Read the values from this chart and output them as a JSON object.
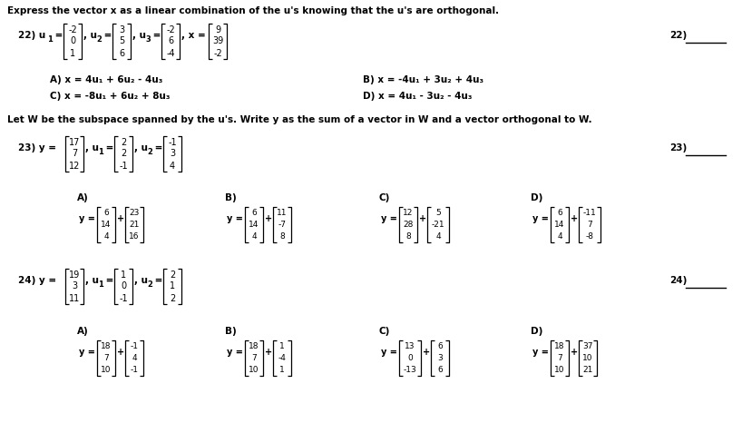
{
  "bg_color": "#ffffff",
  "fig_width": 8.18,
  "fig_height": 4.66,
  "title1": "Express the vector x as a linear combination of the u's knowing that the u's are orthogonal.",
  "title2": "Let W be the subspace spanned by the u's. Write y as the sum of a vector in W and a vector orthogonal to W.",
  "q22_u1": [
    "-2",
    "0",
    "1"
  ],
  "q22_u2": [
    "3",
    "5",
    "6"
  ],
  "q22_u3": [
    "-2",
    "6",
    "-4"
  ],
  "q22_x": [
    "9",
    "39",
    "-2"
  ],
  "q22_A": "A) x = 4u₁ + 6u₂ - 4u₃",
  "q22_B": "B) x = -4u₁ + 3u₂ + 4u₃",
  "q22_C": "C) x = -8u₁ + 6u₂ + 8u₃",
  "q22_D": "D) x = 4u₁ - 3u₂ - 4u₃",
  "q23_y": [
    "17",
    "7",
    "12"
  ],
  "q23_u1": [
    "2",
    "2",
    "-1"
  ],
  "q23_u2": [
    "-1",
    "3",
    "4"
  ],
  "q23_A_v1": [
    "6",
    "14",
    "4"
  ],
  "q23_A_v2": [
    "23",
    "21",
    "16"
  ],
  "q23_B_v1": [
    "6",
    "14",
    "4"
  ],
  "q23_B_v2": [
    "11",
    "-7",
    "8"
  ],
  "q23_C_v1": [
    "12",
    "28",
    "8"
  ],
  "q23_C_v2": [
    "5",
    "-21",
    "4"
  ],
  "q23_D_v1": [
    "6",
    "14",
    "4"
  ],
  "q23_D_v2": [
    "-11",
    "7",
    "-8"
  ],
  "q24_y": [
    "19",
    "3",
    "11"
  ],
  "q24_u1": [
    "1",
    "0",
    "-1"
  ],
  "q24_u2": [
    "2",
    "1",
    "2"
  ],
  "q24_A_v1": [
    "18",
    "7",
    "10"
  ],
  "q24_A_v2": [
    "-1",
    "4",
    "-1"
  ],
  "q24_B_v1": [
    "18",
    "7",
    "10"
  ],
  "q24_B_v2": [
    "1",
    "-4",
    "1"
  ],
  "q24_C_v1": [
    "13",
    "0",
    "-13"
  ],
  "q24_C_v2": [
    "6",
    "3",
    "6"
  ],
  "q24_D_v1": [
    "18",
    "7",
    "10"
  ],
  "q24_D_v2": [
    "37",
    "10",
    "21"
  ]
}
